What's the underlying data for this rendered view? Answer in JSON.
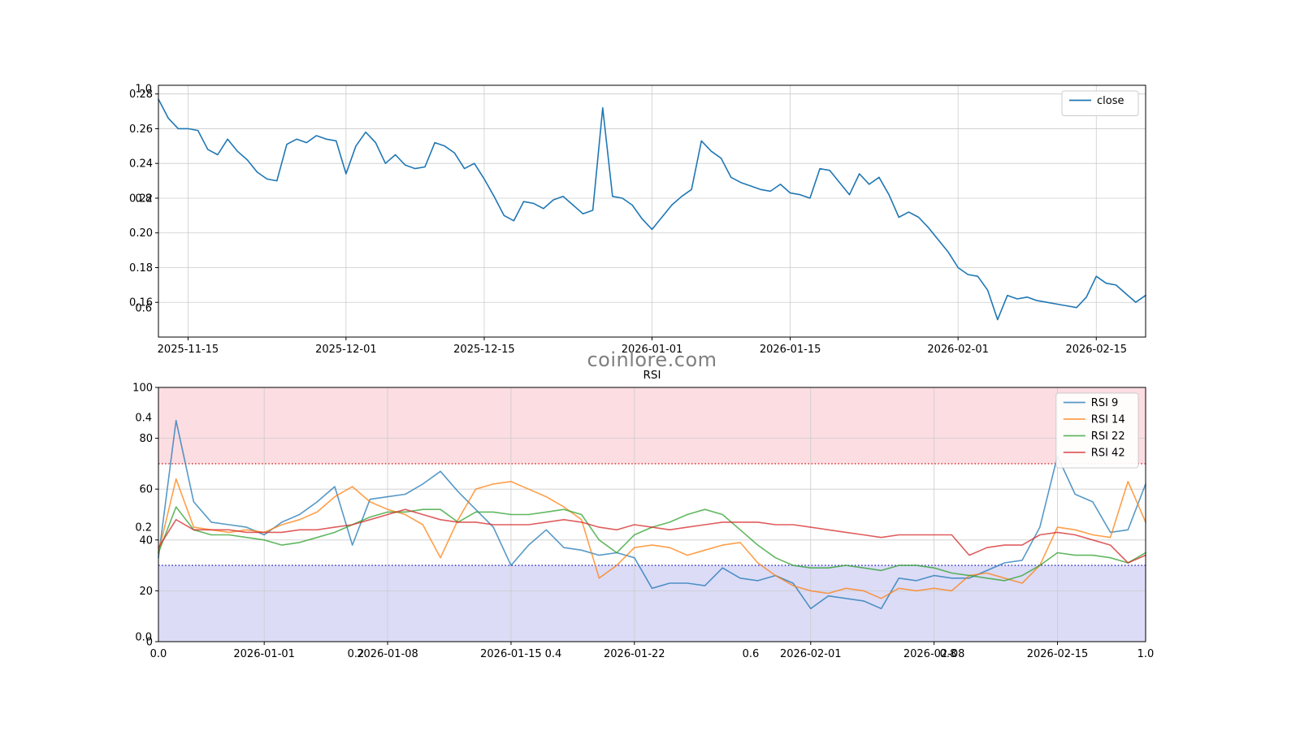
{
  "watermark": "coinlore.com",
  "rsi_title": "RSI",
  "figure": {
    "background": "#ffffff",
    "plot_border": "#000000",
    "grid_color": "#cccccc",
    "tick_color": "#000000"
  },
  "overlay_axis": {
    "x_ticks": [
      "0.0",
      "0.2",
      "0.4",
      "0.6",
      "0.8",
      "1.0"
    ],
    "y_ticks": [
      "1.0",
      "0.8",
      "0.6",
      "0.4",
      "0.2",
      "0.0"
    ]
  },
  "chart_data": [
    {
      "id": "price",
      "type": "line",
      "title": "",
      "ylim": [
        0.14,
        0.285
      ],
      "yticks": [
        0.16,
        0.18,
        0.2,
        0.22,
        0.24,
        0.26,
        0.28
      ],
      "ytick_decimals": 2,
      "grid": true,
      "legend": [
        "close"
      ],
      "xtick_dates": [
        "2025-11-15",
        "2025-12-01",
        "2025-12-15",
        "2026-01-01",
        "2026-01-15",
        "2026-02-01",
        "2026-02-15"
      ],
      "x": [
        "2025-11-12",
        "2025-11-13",
        "2025-11-14",
        "2025-11-15",
        "2025-11-16",
        "2025-11-17",
        "2025-11-18",
        "2025-11-19",
        "2025-11-20",
        "2025-11-21",
        "2025-11-22",
        "2025-11-23",
        "2025-11-24",
        "2025-11-25",
        "2025-11-26",
        "2025-11-27",
        "2025-11-28",
        "2025-11-29",
        "2025-11-30",
        "2025-12-01",
        "2025-12-02",
        "2025-12-03",
        "2025-12-04",
        "2025-12-05",
        "2025-12-06",
        "2025-12-07",
        "2025-12-08",
        "2025-12-09",
        "2025-12-10",
        "2025-12-11",
        "2025-12-12",
        "2025-12-13",
        "2025-12-14",
        "2025-12-15",
        "2025-12-16",
        "2025-12-17",
        "2025-12-18",
        "2025-12-19",
        "2025-12-20",
        "2025-12-21",
        "2025-12-22",
        "2025-12-23",
        "2025-12-24",
        "2025-12-25",
        "2025-12-26",
        "2025-12-27",
        "2025-12-28",
        "2025-12-29",
        "2025-12-30",
        "2025-12-31",
        "2026-01-01",
        "2026-01-02",
        "2026-01-03",
        "2026-01-04",
        "2026-01-05",
        "2026-01-06",
        "2026-01-07",
        "2026-01-08",
        "2026-01-09",
        "2026-01-10",
        "2026-01-11",
        "2026-01-12",
        "2026-01-13",
        "2026-01-14",
        "2026-01-15",
        "2026-01-16",
        "2026-01-17",
        "2026-01-18",
        "2026-01-19",
        "2026-01-20",
        "2026-01-21",
        "2026-01-22",
        "2026-01-23",
        "2026-01-24",
        "2026-01-25",
        "2026-01-26",
        "2026-01-27",
        "2026-01-28",
        "2026-01-29",
        "2026-01-30",
        "2026-01-31",
        "2026-02-01",
        "2026-02-02",
        "2026-02-03",
        "2026-02-04",
        "2026-02-05",
        "2026-02-06",
        "2026-02-07",
        "2026-02-08",
        "2026-02-09",
        "2026-02-10",
        "2026-02-11",
        "2026-02-12",
        "2026-02-13",
        "2026-02-14",
        "2026-02-15",
        "2026-02-16",
        "2026-02-17",
        "2026-02-18",
        "2026-02-19",
        "2026-02-20"
      ],
      "series": [
        {
          "name": "close",
          "color": "#1f77b4",
          "opacity": 1,
          "values": [
            0.277,
            0.266,
            0.26,
            0.26,
            0.259,
            0.248,
            0.245,
            0.254,
            0.247,
            0.242,
            0.235,
            0.231,
            0.23,
            0.251,
            0.254,
            0.252,
            0.256,
            0.254,
            0.253,
            0.234,
            0.25,
            0.258,
            0.252,
            0.24,
            0.245,
            0.239,
            0.237,
            0.238,
            0.252,
            0.25,
            0.246,
            0.237,
            0.24,
            0.231,
            0.221,
            0.21,
            0.207,
            0.218,
            0.217,
            0.214,
            0.219,
            0.221,
            0.216,
            0.211,
            0.213,
            0.272,
            0.221,
            0.22,
            0.216,
            0.208,
            0.202,
            0.209,
            0.216,
            0.221,
            0.225,
            0.253,
            0.247,
            0.243,
            0.232,
            0.229,
            0.227,
            0.225,
            0.224,
            0.228,
            0.223,
            0.222,
            0.22,
            0.237,
            0.236,
            0.229,
            0.222,
            0.234,
            0.228,
            0.232,
            0.222,
            0.209,
            0.212,
            0.209,
            0.203,
            0.196,
            0.189,
            0.18,
            0.176,
            0.175,
            0.167,
            0.15,
            0.164,
            0.162,
            0.163,
            0.161,
            0.16,
            0.159,
            0.158,
            0.157,
            0.163,
            0.175,
            0.171,
            0.17,
            0.165,
            0.16,
            0.164
          ]
        }
      ]
    },
    {
      "id": "rsi",
      "type": "line",
      "title": "RSI",
      "ylim": [
        0,
        100
      ],
      "yticks": [
        0,
        20,
        40,
        60,
        80,
        100
      ],
      "ytick_decimals": 0,
      "grid": true,
      "legend": [
        "RSI 9",
        "RSI 14",
        "RSI 22",
        "RSI 42"
      ],
      "xtick_dates": [
        "2026-01-01",
        "2026-01-08",
        "2026-01-15",
        "2026-01-22",
        "2026-02-01",
        "2026-02-08",
        "2026-02-15"
      ],
      "hlines": [
        {
          "y": 70,
          "color": "#d62222",
          "label": "overbought-threshold"
        },
        {
          "y": 30,
          "color": "#2222bb",
          "label": "oversold-threshold"
        }
      ],
      "bands": [
        {
          "from": 70,
          "to": 100,
          "color": "#fbdde2",
          "label": "overbought-zone"
        },
        {
          "from": 0,
          "to": 30,
          "color": "#dcdcf7",
          "label": "oversold-zone"
        }
      ],
      "x": [
        "2025-12-26",
        "2025-12-27",
        "2025-12-28",
        "2025-12-29",
        "2025-12-30",
        "2025-12-31",
        "2026-01-01",
        "2026-01-02",
        "2026-01-03",
        "2026-01-04",
        "2026-01-05",
        "2026-01-06",
        "2026-01-07",
        "2026-01-08",
        "2026-01-09",
        "2026-01-10",
        "2026-01-11",
        "2026-01-12",
        "2026-01-13",
        "2026-01-14",
        "2026-01-15",
        "2026-01-16",
        "2026-01-17",
        "2026-01-18",
        "2026-01-19",
        "2026-01-20",
        "2026-01-21",
        "2026-01-22",
        "2026-01-23",
        "2026-01-24",
        "2026-01-25",
        "2026-01-26",
        "2026-01-27",
        "2026-01-28",
        "2026-01-29",
        "2026-01-30",
        "2026-01-31",
        "2026-02-01",
        "2026-02-02",
        "2026-02-03",
        "2026-02-04",
        "2026-02-05",
        "2026-02-06",
        "2026-02-07",
        "2026-02-08",
        "2026-02-09",
        "2026-02-10",
        "2026-02-11",
        "2026-02-12",
        "2026-02-13",
        "2026-02-14",
        "2026-02-15",
        "2026-02-16",
        "2026-02-17",
        "2026-02-18",
        "2026-02-19",
        "2026-02-20"
      ],
      "series": [
        {
          "name": "RSI 9",
          "color": "#1f77b4",
          "opacity": 0.75,
          "values": [
            33,
            87,
            55,
            47,
            46,
            45,
            42,
            47,
            50,
            55,
            61,
            38,
            56,
            57,
            58,
            62,
            67,
            59,
            52,
            45,
            30,
            38,
            44,
            37,
            36,
            34,
            35,
            33,
            21,
            23,
            23,
            22,
            29,
            25,
            24,
            26,
            23,
            13,
            18,
            17,
            16,
            13,
            25,
            24,
            26,
            25,
            25,
            28,
            31,
            32,
            45,
            73,
            58,
            55,
            43,
            44,
            62
          ]
        },
        {
          "name": "RSI 14",
          "color": "#ff7f0e",
          "opacity": 0.75,
          "values": [
            35,
            64,
            45,
            44,
            43,
            44,
            43,
            46,
            48,
            51,
            57,
            61,
            55,
            52,
            50,
            46,
            33,
            48,
            60,
            62,
            63,
            60,
            57,
            53,
            48,
            25,
            30,
            37,
            38,
            37,
            34,
            36,
            38,
            39,
            31,
            26,
            22,
            20,
            19,
            21,
            20,
            17,
            21,
            20,
            21,
            20,
            26,
            27,
            25,
            23,
            30,
            45,
            44,
            42,
            41,
            63,
            47
          ]
        },
        {
          "name": "RSI 22",
          "color": "#2ca02c",
          "opacity": 0.75,
          "values": [
            35,
            53,
            44,
            42,
            42,
            41,
            40,
            38,
            39,
            41,
            43,
            46,
            49,
            51,
            51,
            52,
            52,
            47,
            51,
            51,
            50,
            50,
            51,
            52,
            50,
            40,
            35,
            42,
            45,
            47,
            50,
            52,
            50,
            44,
            38,
            33,
            30,
            29,
            29,
            30,
            29,
            28,
            30,
            30,
            29,
            27,
            26,
            25,
            24,
            26,
            30,
            35,
            34,
            34,
            33,
            31,
            35
          ]
        },
        {
          "name": "RSI 42",
          "color": "#d62728",
          "opacity": 0.75,
          "values": [
            37,
            48,
            44,
            44,
            44,
            43,
            43,
            43,
            44,
            44,
            45,
            46,
            48,
            50,
            52,
            50,
            48,
            47,
            47,
            46,
            46,
            46,
            47,
            48,
            47,
            45,
            44,
            46,
            45,
            44,
            45,
            46,
            47,
            47,
            47,
            46,
            46,
            45,
            44,
            43,
            42,
            41,
            42,
            42,
            42,
            42,
            34,
            37,
            38,
            38,
            42,
            43,
            42,
            40,
            38,
            31,
            34
          ]
        }
      ]
    }
  ]
}
